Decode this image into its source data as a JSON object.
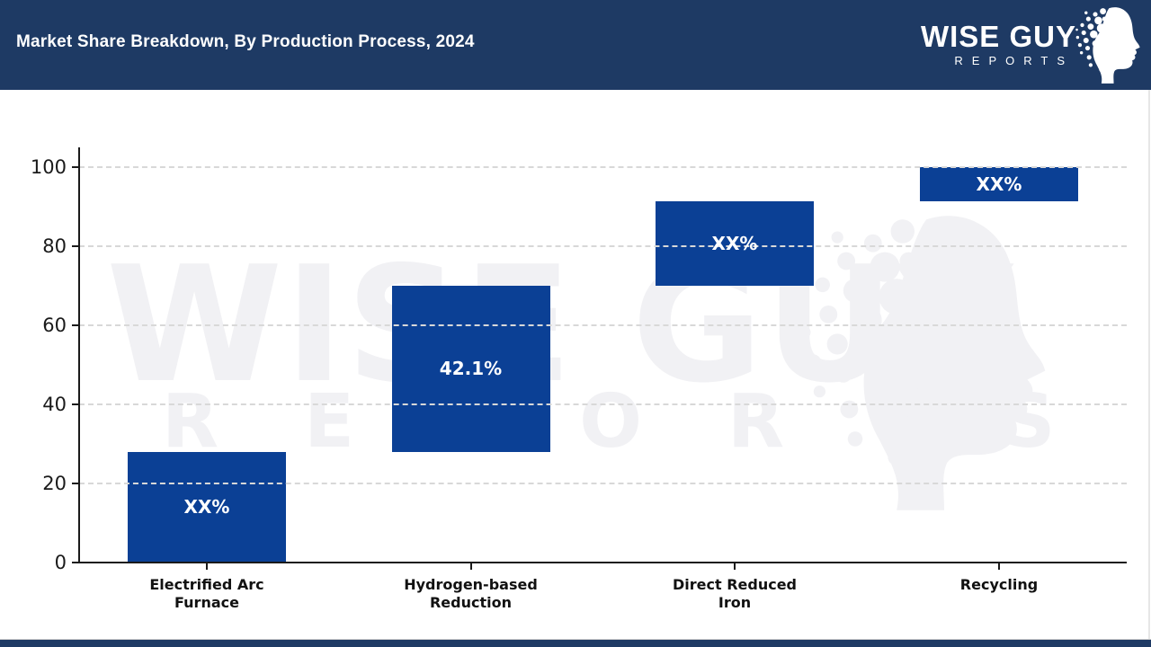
{
  "header": {
    "title": "Market Share Breakdown, By Production Process, 2024",
    "logo": {
      "line1": "WISE GUY",
      "line2": "REPORTS"
    }
  },
  "watermark": {
    "line1": "WISE GUY",
    "line2": "REPORTS"
  },
  "chart_data": {
    "type": "bar",
    "subtype": "waterfall",
    "title": "Market Share Breakdown, By Production Process, 2024",
    "categories": [
      "Electrified Arc\nFurnace",
      "Hydrogen-based\nReduction",
      "Direct Reduced\nIron",
      "Recycling"
    ],
    "bars": [
      {
        "category": "Electrified Arc Furnace",
        "label": "XX%",
        "start": 0,
        "end": 28.0,
        "value_est": 28.0
      },
      {
        "category": "Hydrogen-based Reduction",
        "label": "42.1%",
        "start": 28.0,
        "end": 70.1,
        "value_est": 42.1
      },
      {
        "category": "Direct Reduced Iron",
        "label": "XX%",
        "start": 70.1,
        "end": 91.3,
        "value_est": 21.2
      },
      {
        "category": "Recycling",
        "label": "XX%",
        "start": 91.3,
        "end": 100.0,
        "value_est": 8.7
      }
    ],
    "yticks": [
      0,
      20,
      40,
      60,
      80,
      100
    ],
    "ylim": [
      0,
      105
    ],
    "xlabel": "",
    "ylabel": "",
    "grid": "horizontal-dashed",
    "legend": "none",
    "bar_color": "#0b4095",
    "bar_label_color": "#ffffff"
  },
  "colors": {
    "header_bg": "#1e3a64",
    "bar": "#0b4095",
    "grid": "#d8d8d8",
    "axis": "#1a1a1a",
    "watermark": "#f1f1f4",
    "footer_bg": "#1e3a64"
  }
}
